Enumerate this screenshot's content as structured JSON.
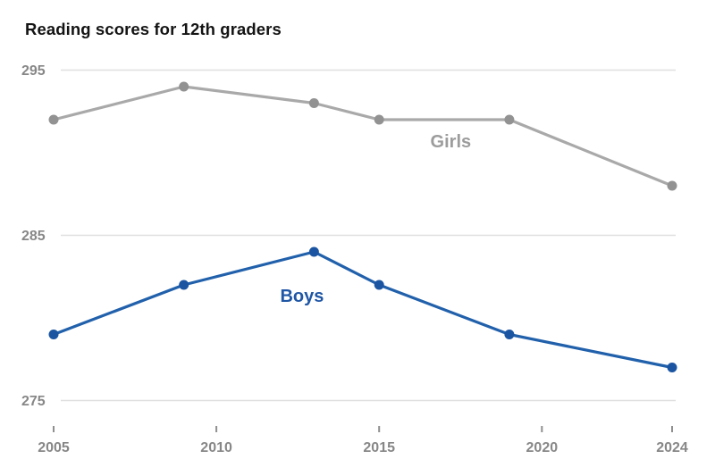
{
  "chart_data": {
    "type": "line",
    "title": "Reading scores for 12th graders",
    "xlabel": "",
    "ylabel": "",
    "x": [
      2005,
      2009,
      2013,
      2015,
      2019,
      2024
    ],
    "series": [
      {
        "name": "Girls",
        "color": "#a9a9a9",
        "point_color": "#929292",
        "values": [
          292,
          294,
          293,
          292,
          292,
          288
        ]
      },
      {
        "name": "Boys",
        "color": "#2160ab",
        "point_color": "#1b55a2",
        "values": [
          279,
          282,
          284,
          282,
          279,
          277
        ]
      }
    ],
    "xticks": [
      2005,
      2010,
      2015,
      2020,
      2024
    ],
    "yticks": [
      295,
      285,
      275
    ],
    "xlim": [
      2005,
      2024
    ],
    "ylim": [
      275,
      295
    ],
    "grid": "horizontal-only",
    "legend": "inline-series-labels",
    "annotations": [
      {
        "text": "Girls",
        "x": 2017.2,
        "y": 290.7,
        "color": "#9c9c9c"
      },
      {
        "text": "Boys",
        "x": 2012.63,
        "y": 281.35,
        "color": "#1f56a5"
      }
    ],
    "axis_text_color": "#878787",
    "gridline_color": "#dfdfdf",
    "tick_mark_color": "#8f8f8f"
  }
}
